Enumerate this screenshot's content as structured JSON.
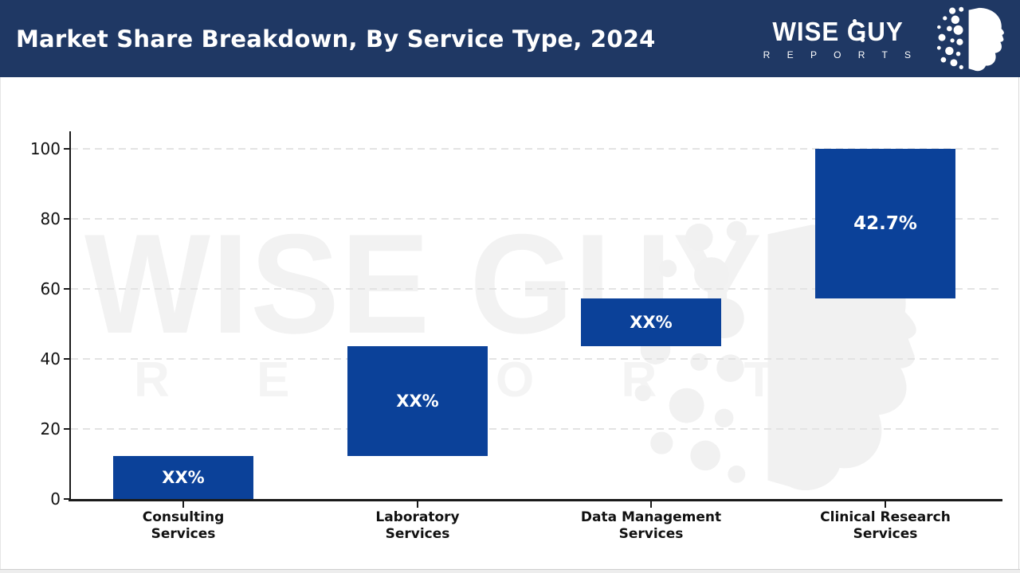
{
  "header": {
    "title": "Market Share Breakdown, By Service Type, 2024",
    "logo": {
      "name": "WISE GUY",
      "sub": "R E P O R T S"
    }
  },
  "watermark": {
    "line1": "WISE GUY",
    "line2": "R E P O R T S"
  },
  "colors": {
    "header_bg": "#1F3864",
    "bar": "#0B4199",
    "grid": "#e3e3e3",
    "axis": "#1a1a1a",
    "bar_label": "#ffffff",
    "watermark": "#f2f2f2"
  },
  "chart_data": {
    "type": "bar",
    "subtype": "waterfall",
    "title": "Market Share Breakdown, By Service Type, 2024",
    "xlabel": "",
    "ylabel": "",
    "ylim": [
      0,
      105
    ],
    "yticks": [
      0,
      20,
      40,
      60,
      80,
      100
    ],
    "grid": "horizontal-dashed",
    "legend": "none",
    "categories": [
      [
        "Consulting",
        "Services"
      ],
      [
        "Laboratory",
        "Services"
      ],
      [
        "Data Management",
        "Services"
      ],
      [
        "Clinical Research",
        "Services"
      ]
    ],
    "segments": [
      {
        "category": "Consulting Services",
        "start": 0,
        "end": 12.2,
        "value": 12.2,
        "value_label": "XX%"
      },
      {
        "category": "Laboratory Services",
        "start": 12.2,
        "end": 43.6,
        "value": 31.4,
        "value_label": "XX%"
      },
      {
        "category": "Data Management Services",
        "start": 43.6,
        "end": 57.3,
        "value": 13.7,
        "value_label": "XX%"
      },
      {
        "category": "Clinical Research Services",
        "start": 57.3,
        "end": 100,
        "value": 42.7,
        "value_label": "42.7%"
      }
    ]
  }
}
